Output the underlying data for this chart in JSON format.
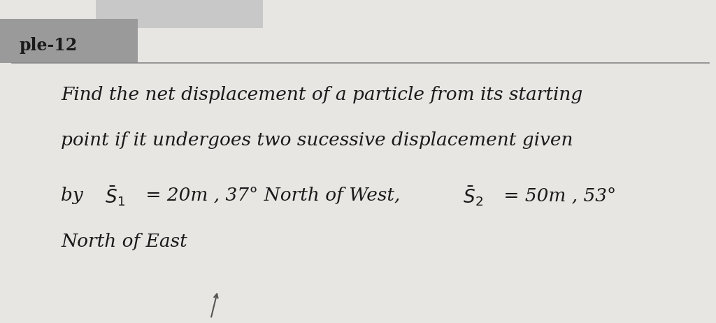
{
  "background_color": "#e8e6e3",
  "header_label": "ple-12",
  "header_bg": "#9a9a9a",
  "header_line_color": "#888888",
  "line1": "Find the net displacement of a particle from its starting",
  "line2": "point if it undergoes two sucessive displacement given",
  "line3_by": "by ",
  "line3_mid": " = 20m , 37° North of West, ",
  "line3_end": " = 50m , 53°",
  "line4": "North of East",
  "text_color": "#1a1a1a",
  "font_size_body": 19,
  "font_size_header": 17
}
